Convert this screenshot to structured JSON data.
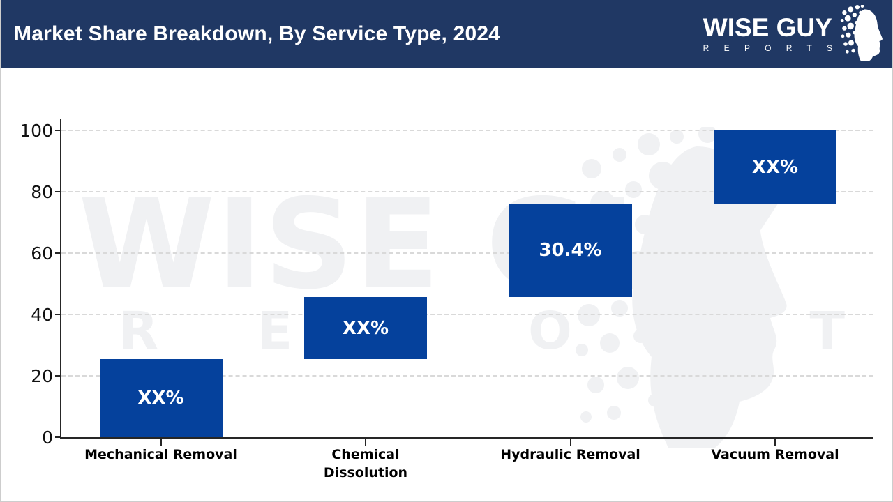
{
  "header": {
    "title": "Market Share Breakdown, By Service Type, 2024",
    "logo": {
      "name": "WISE GUY",
      "sub": "R E P O R T S",
      "icon": "dotted-face-profile-icon"
    }
  },
  "watermark": {
    "text_large": "WISE GUY",
    "text_sub": "R E P O R T S",
    "icon": "dotted-face-profile-watermark"
  },
  "chart_data": {
    "type": "bar",
    "variant": "waterfall",
    "title": "Market Share Breakdown, By Service Type, 2024",
    "categories": [
      "Mechanical Removal",
      "Chemical Dissolution",
      "Hydraulic Removal",
      "Vacuum Removal"
    ],
    "category_labels": [
      "Mechanical Removal",
      "Chemical\nDissolution",
      "Hydraulic Removal",
      "Vacuum Removal"
    ],
    "segments": [
      {
        "category": "Mechanical Removal",
        "start": 0,
        "end": 25.4,
        "height": 25.4,
        "value_label": "XX%"
      },
      {
        "category": "Chemical Dissolution",
        "start": 25.4,
        "end": 45.7,
        "height": 20.3,
        "value_label": "XX%"
      },
      {
        "category": "Hydraulic Removal",
        "start": 45.7,
        "end": 76.1,
        "height": 30.4,
        "value_label": "30.4%"
      },
      {
        "category": "Vacuum Removal",
        "start": 76.1,
        "end": 100,
        "height": 23.9,
        "value_label": "XX%"
      }
    ],
    "xlabel": "",
    "ylabel": "",
    "ylim": [
      0,
      100
    ],
    "yticks": [
      0,
      20,
      40,
      60,
      80,
      100
    ],
    "grid": {
      "horizontal": true,
      "style": "dashed",
      "vertical": false
    },
    "legend": "none",
    "colors": {
      "bar": "#05419C",
      "header_bg": "#203864",
      "axis": "#262626",
      "tick_label": "#111111",
      "bar_label": "#ffffff",
      "gridline": "#d9d9d9",
      "watermark": "#f0f1f3"
    }
  }
}
